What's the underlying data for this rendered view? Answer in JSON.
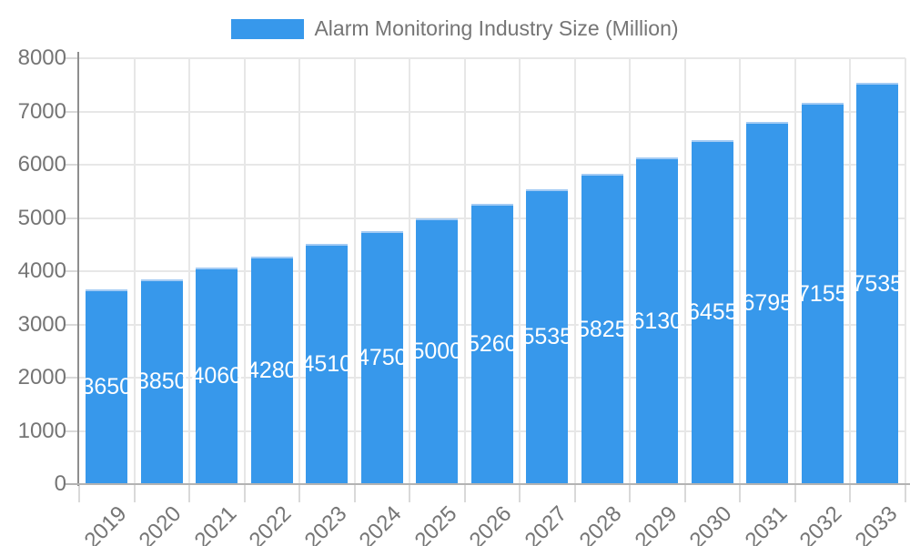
{
  "chart_data": {
    "type": "bar",
    "title": "Alarm Monitoring Industry Size (Million)",
    "categories": [
      "2019",
      "2020",
      "2021",
      "2022",
      "2023",
      "2024",
      "2025",
      "2026",
      "2027",
      "2028",
      "2029",
      "2030",
      "2031",
      "2032",
      "2033"
    ],
    "values": [
      3650,
      3850,
      4060,
      4280,
      4510,
      4750,
      5000,
      5260,
      5535,
      5825,
      6130,
      6455,
      6795,
      7155,
      7535
    ],
    "xlabel": "",
    "ylabel": "",
    "ylim": [
      0,
      8000
    ],
    "ytick_step": 1000,
    "yticks": [
      0,
      1000,
      2000,
      3000,
      4000,
      5000,
      6000,
      7000,
      8000
    ],
    "grid": true,
    "legend_position": "top",
    "x_tick_rotation_deg": 45,
    "colors": {
      "bar": "#3798EB",
      "bar_top_edge": "#A3CBF4",
      "bar_value_label": "#FFFFFF",
      "gridline": "#E7E7E7",
      "tick": "#D9D9D9",
      "y_axis_line": "#8E8E8E",
      "x_axis_line": "#B3B3B3",
      "text": "#757575"
    }
  }
}
